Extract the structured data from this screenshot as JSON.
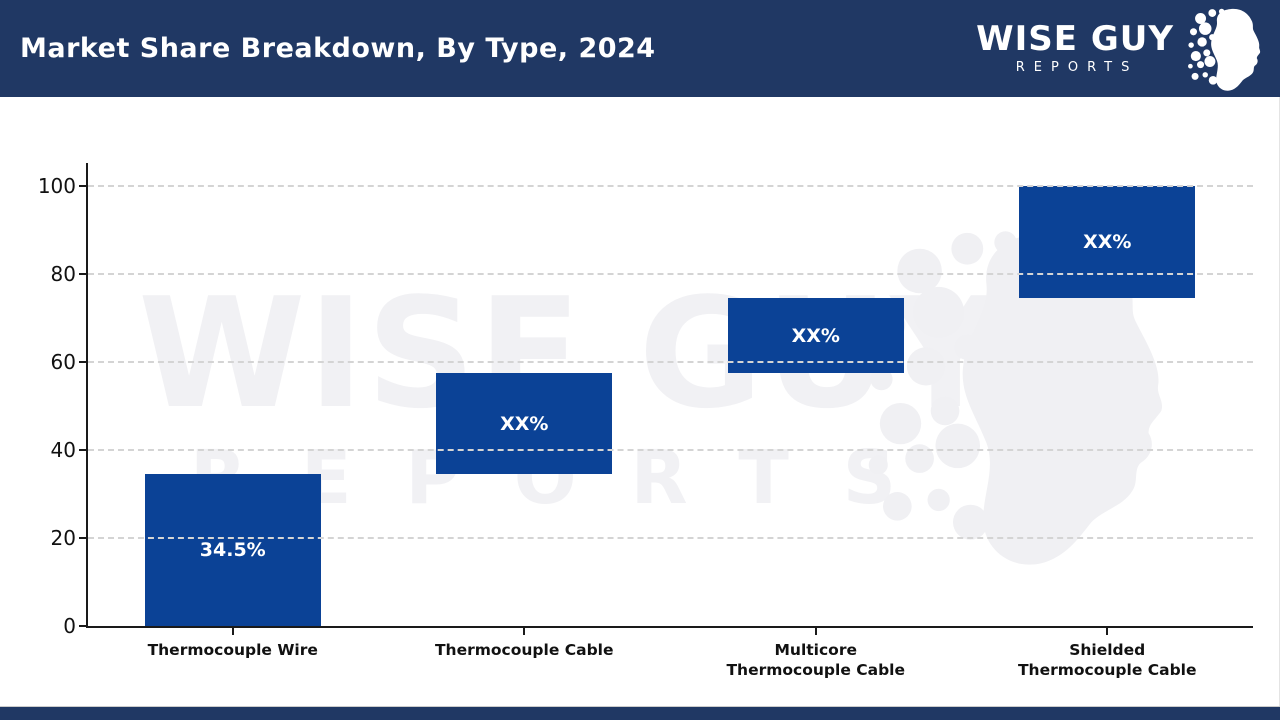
{
  "header": {
    "title": "Market Share Breakdown, By Type, 2024",
    "logo": {
      "line1": "WISE GUY",
      "line2": "REPORTS"
    }
  },
  "watermark": {
    "line1": "WISE GUY",
    "line2": "REPORTS"
  },
  "chart_data": {
    "type": "bar",
    "subtype": "waterfall",
    "title": "Market Share Breakdown, By Type, 2024",
    "categories": [
      [
        "Thermocouple Wire"
      ],
      [
        "Thermocouple Cable"
      ],
      [
        "Multicore",
        "Thermocouple Cable"
      ],
      [
        "Shielded",
        "Thermocouple Cable"
      ]
    ],
    "segments": [
      {
        "start": 0,
        "end": 34.5,
        "label": "34.5%"
      },
      {
        "start": 34.5,
        "end": 57.5,
        "label": "XX%"
      },
      {
        "start": 57.5,
        "end": 74.5,
        "label": "XX%"
      },
      {
        "start": 74.5,
        "end": 100,
        "label": "XX%"
      }
    ],
    "yticks": [
      0,
      20,
      40,
      60,
      80,
      100
    ],
    "ylim": [
      0,
      100
    ],
    "xlabel": "",
    "ylabel": "",
    "grid": true,
    "legend": false
  },
  "colors": {
    "header_bg": "#203864",
    "footer_bg": "#203864",
    "bar": "#0B4296",
    "grid": "#d4d4d4",
    "watermark": "#f1f1f4",
    "axis": "#1a1a1a"
  }
}
